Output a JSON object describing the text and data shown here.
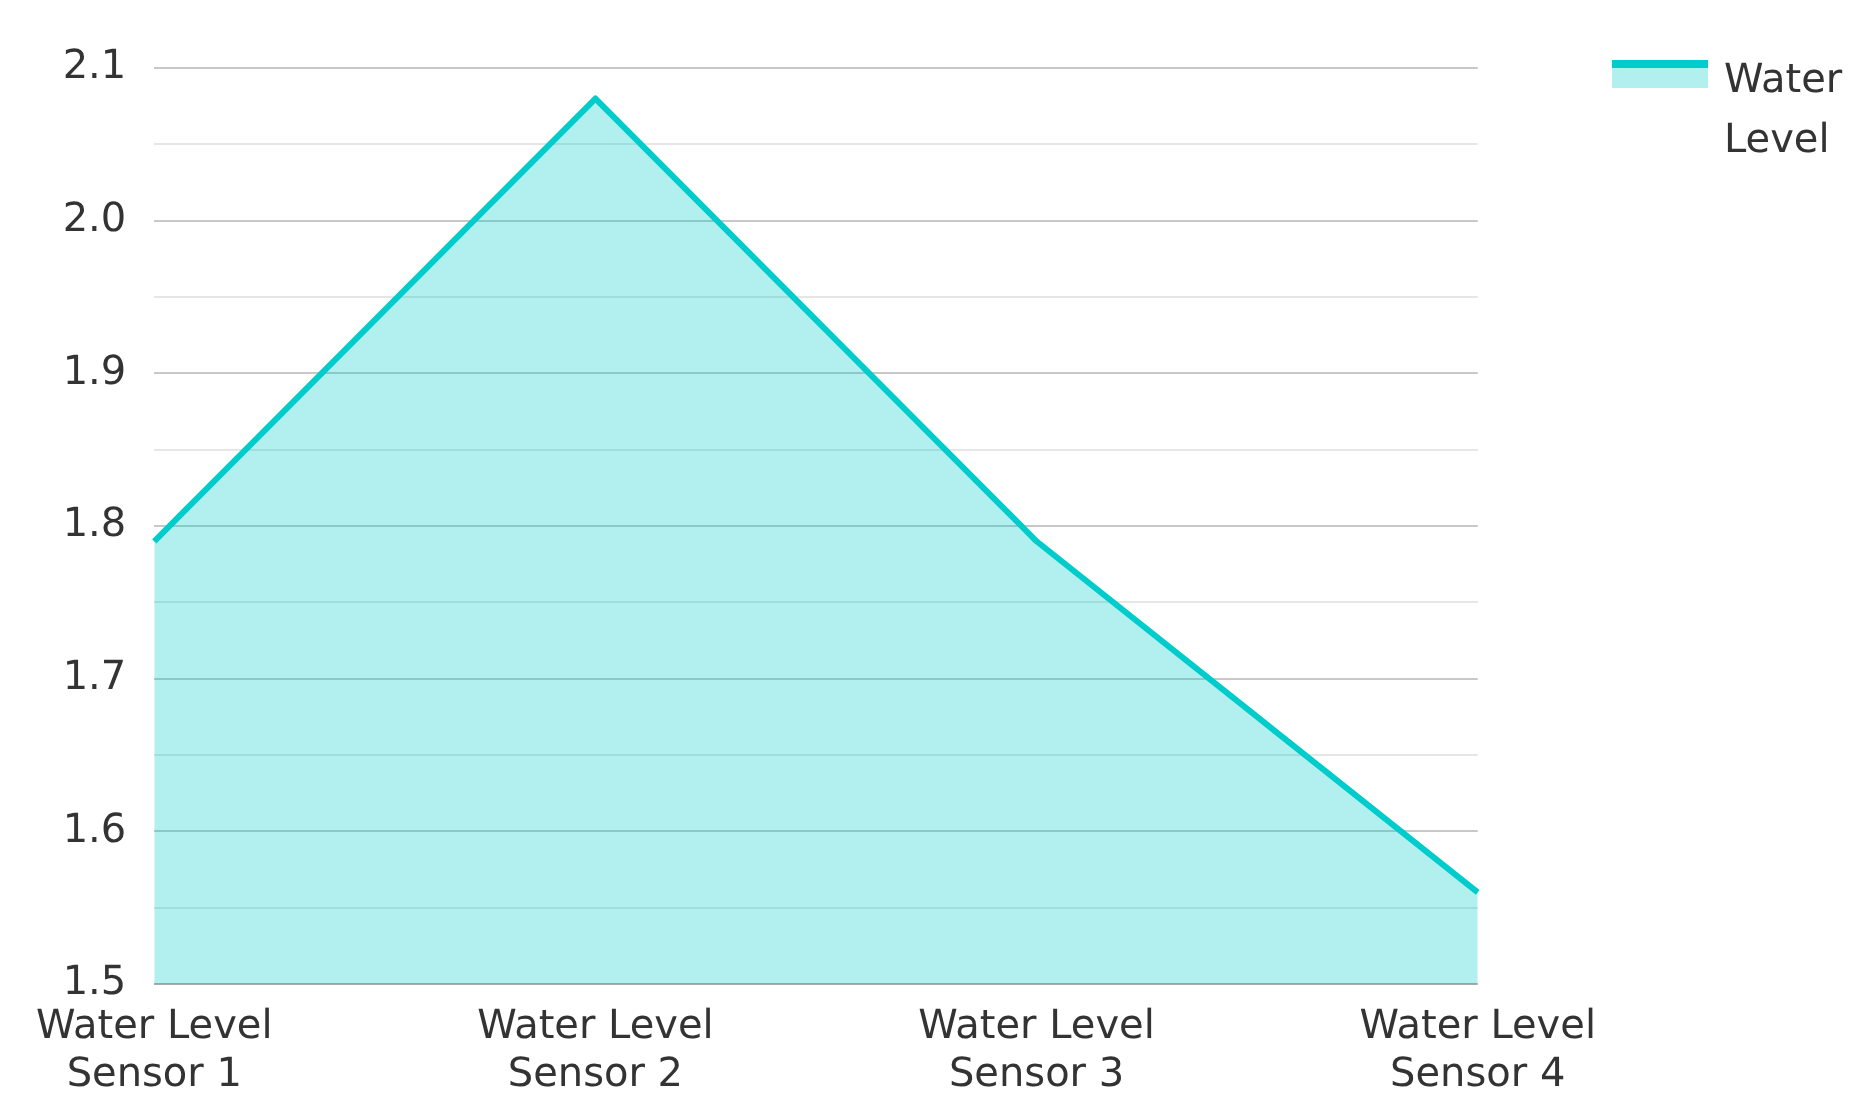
{
  "chart_data": {
    "type": "area",
    "categories": [
      "Water Level Sensor 1",
      "Water Level Sensor 2",
      "Water Level Sensor 3",
      "Water Level Sensor 4"
    ],
    "series": [
      {
        "name": "Water Level",
        "color": "#00cccc",
        "values": [
          1.79,
          2.08,
          1.79,
          1.56
        ]
      }
    ],
    "ylim": [
      1.5,
      2.1
    ],
    "yticks": [
      1.5,
      {
        "value": 1.55,
        "label": null
      },
      1.6,
      {
        "value": 1.65,
        "label": null
      },
      1.7,
      {
        "value": 1.75,
        "label": null
      },
      1.8,
      {
        "value": 1.85,
        "label": null
      },
      1.9,
      {
        "value": 1.95,
        "label": null
      },
      {
        "value": 2.0,
        "label": "2.0"
      },
      {
        "value": 2.05,
        "label": null
      },
      2.1
    ],
    "grid": "y",
    "legend": "top right"
  }
}
